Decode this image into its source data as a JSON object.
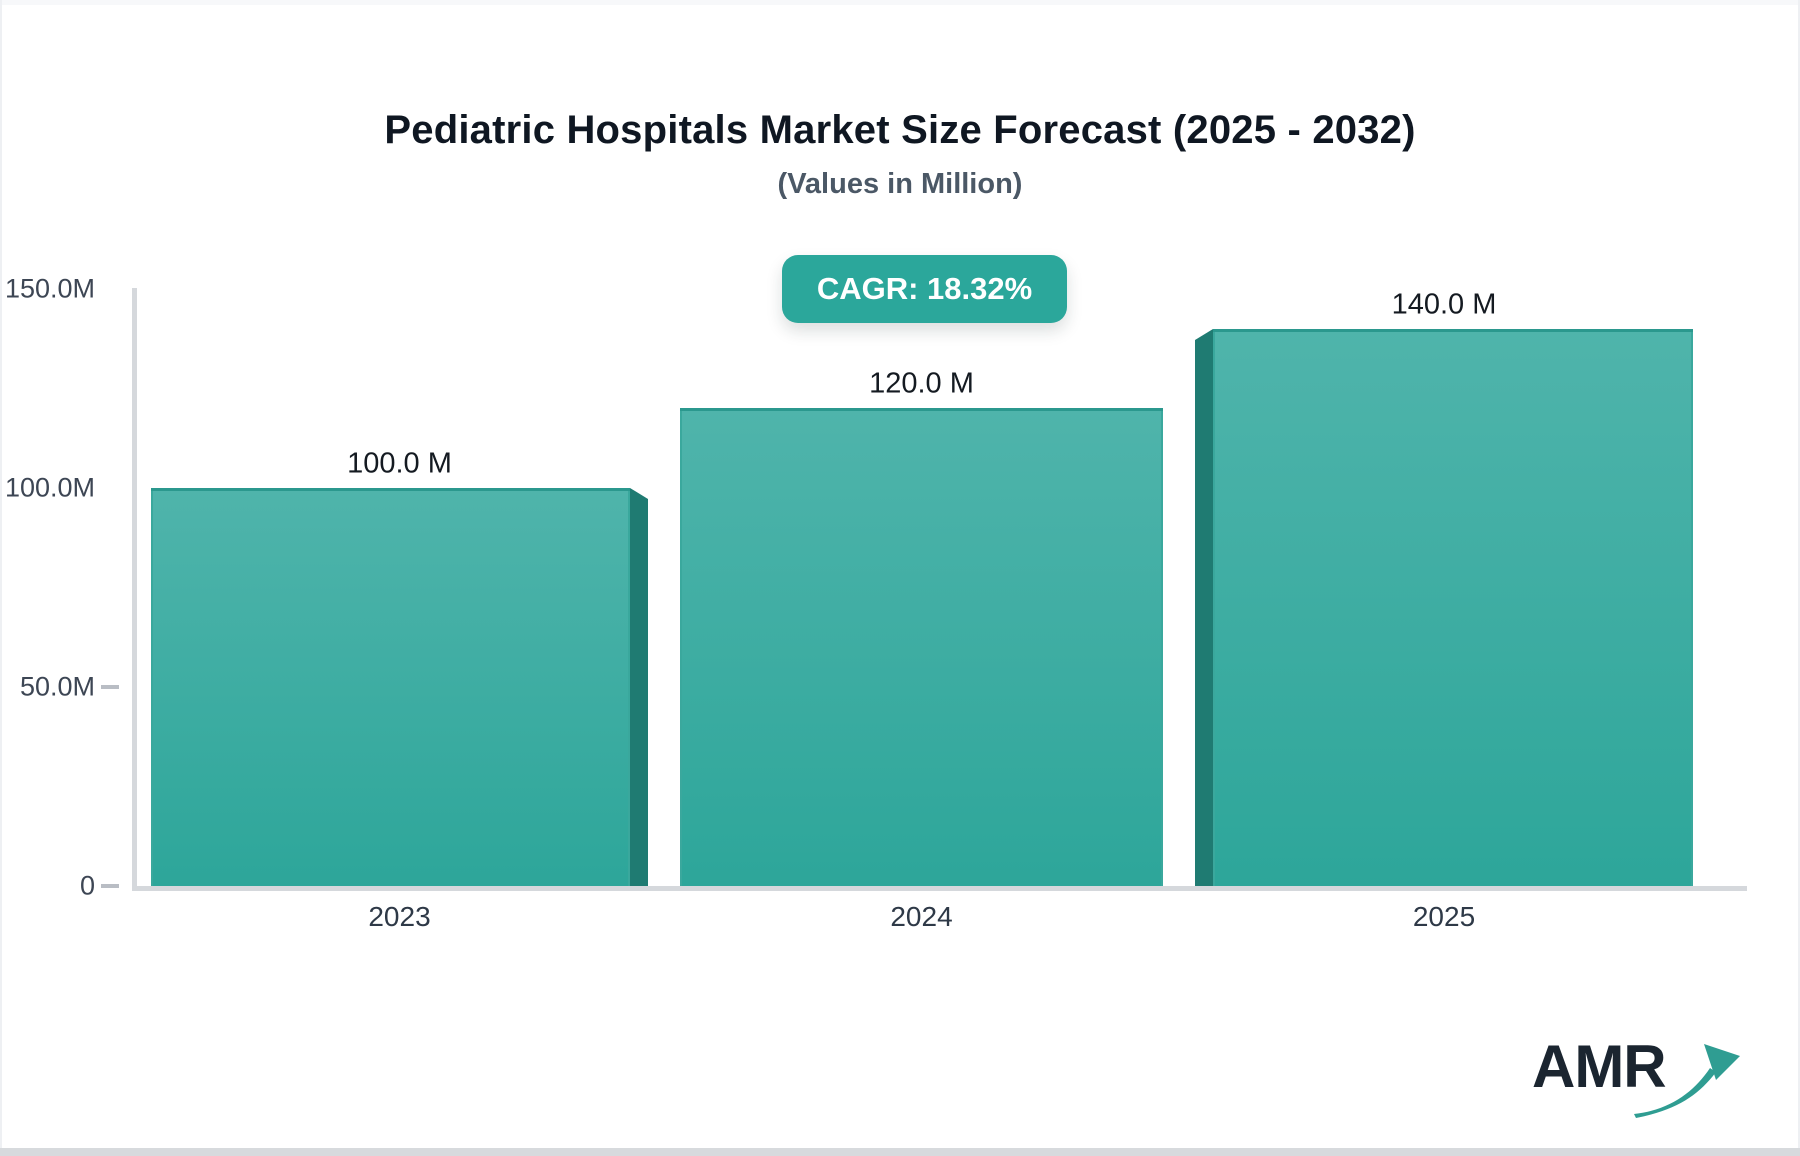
{
  "header": {
    "title": "Pediatric Hospitals Market Size Forecast (2025 - 2032)",
    "subtitle": "(Values in Million)"
  },
  "badge": {
    "label": "CAGR: 18.32%",
    "bg_color": "#2ba79b",
    "text_color": "#ffffff"
  },
  "chart_data": {
    "type": "bar",
    "title": "Pediatric Hospitals Market Size Forecast (2025 - 2032)",
    "subtitle": "(Values in Million)",
    "cagr_label": "CAGR: 18.32%",
    "unit": "Million",
    "categories": [
      "2023",
      "2024",
      "2025"
    ],
    "values": [
      100.0,
      120.0,
      140.0
    ],
    "value_labels": [
      "100.0 M",
      "120.0 M",
      "140.0 M"
    ],
    "y_axis": {
      "ticks": [
        {
          "label": "150.0M",
          "value": 150,
          "dash": false
        },
        {
          "label": "100.0M",
          "value": 100,
          "dash": false
        },
        {
          "label": "50.0M",
          "value": 50,
          "dash": true
        },
        {
          "label": "0",
          "value": 0,
          "dash": true
        }
      ],
      "ylim": [
        0,
        150
      ]
    },
    "grid": false,
    "legend": false,
    "colors": {
      "bar_gradient_top": "#4fb4ab",
      "bar_gradient_bottom": "#2da69a",
      "bar_top_edge": "#2b988e",
      "bar_bevel": "#1f7b72",
      "axis": "#d5d8dc"
    }
  },
  "logo": {
    "text": "AMR",
    "arrow_color": "#2f9d92"
  }
}
